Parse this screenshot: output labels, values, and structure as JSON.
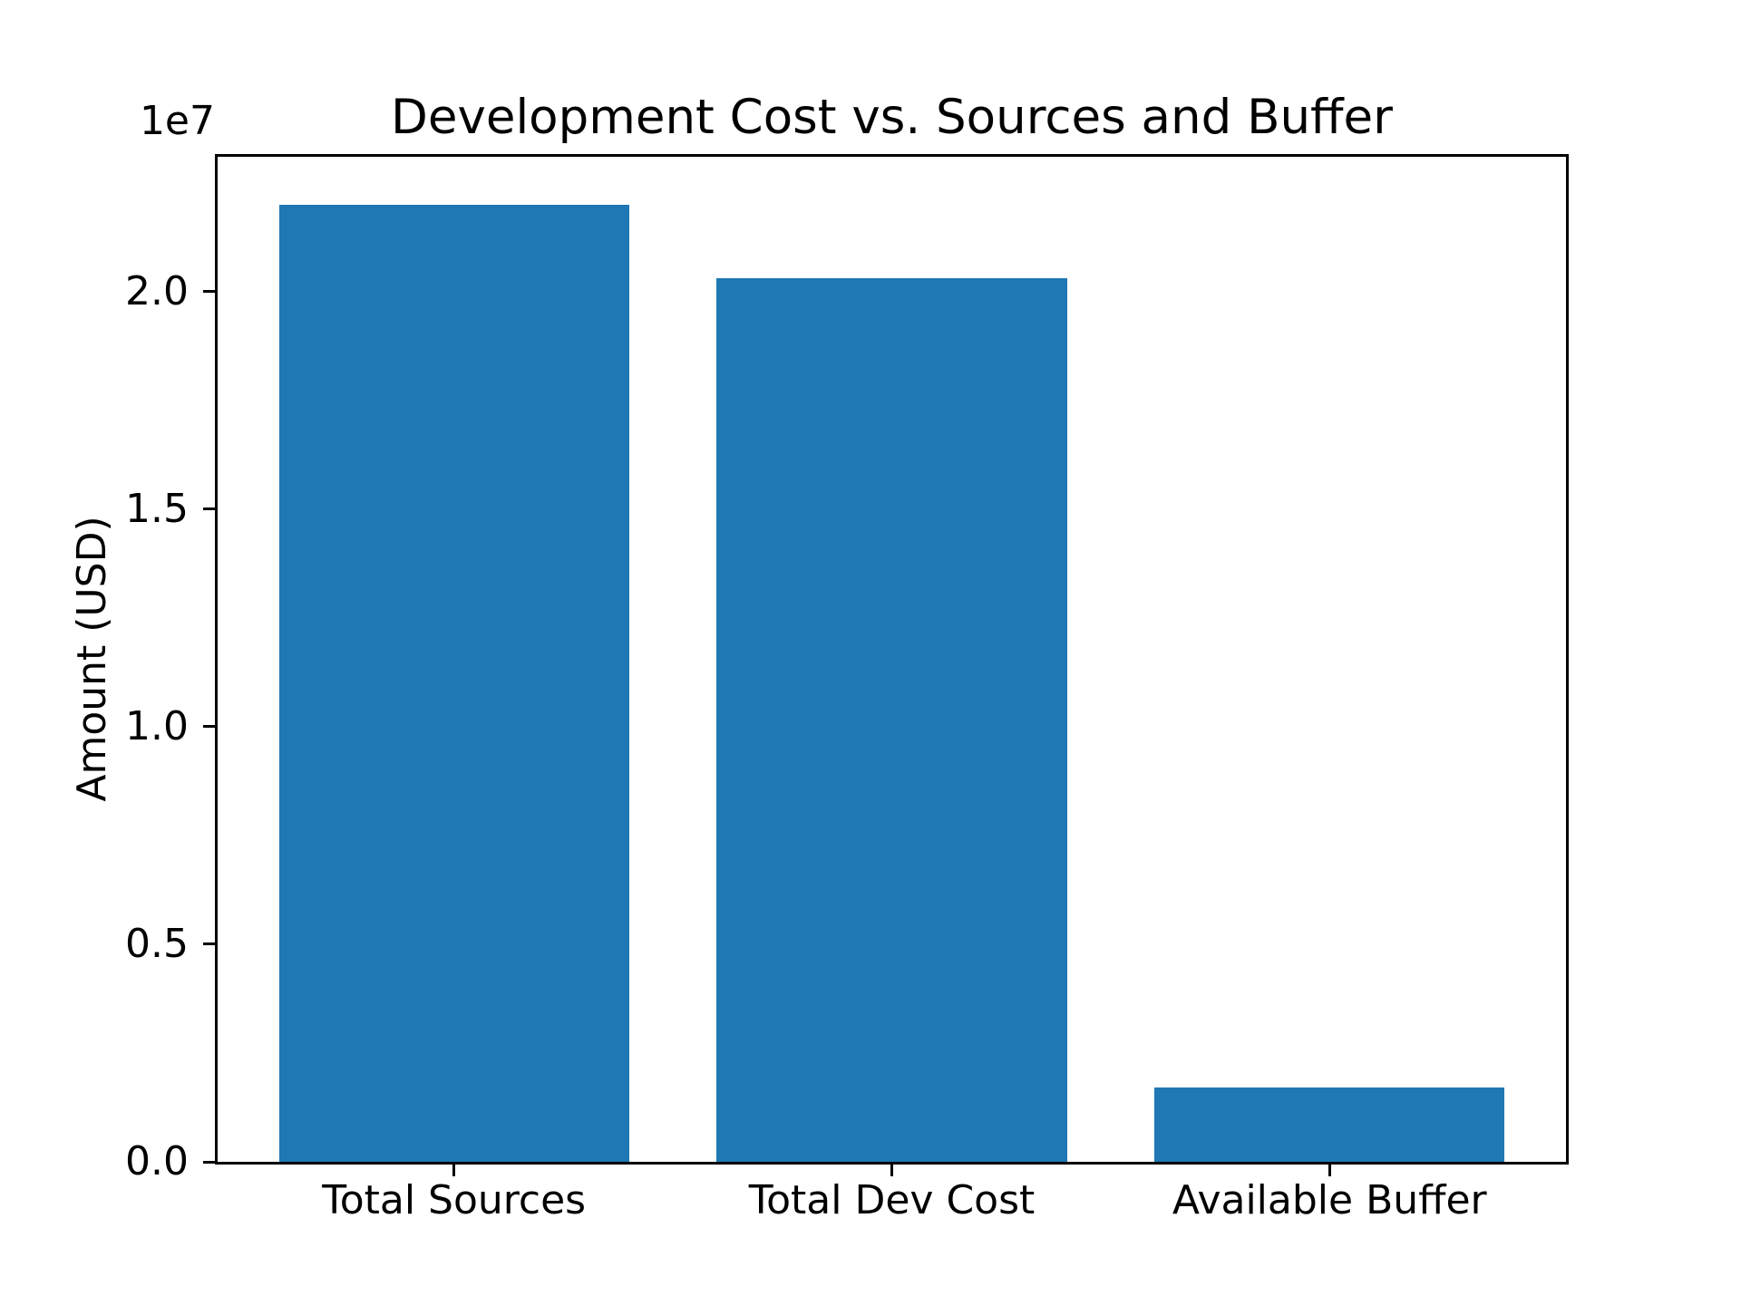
{
  "chart_data": {
    "type": "bar",
    "title": "Development Cost vs. Sources and Buffer",
    "xlabel": "",
    "ylabel": "Amount (USD)",
    "y_offset_label": "1e7",
    "categories": [
      "Total Sources",
      "Total Dev Cost",
      "Available Buffer"
    ],
    "values": [
      22000000,
      20300000,
      1700000
    ],
    "bar_color": "#1f77b4",
    "ylim": [
      0,
      23100000
    ],
    "xlim": [
      -0.54,
      2.54
    ],
    "bar_width_units": 0.8,
    "yticks": {
      "values": [
        0,
        5000000,
        10000000,
        15000000,
        20000000
      ],
      "labels": [
        "0.0",
        "0.5",
        "1.0",
        "1.5",
        "2.0"
      ]
    },
    "grid": false,
    "legend": "none"
  }
}
